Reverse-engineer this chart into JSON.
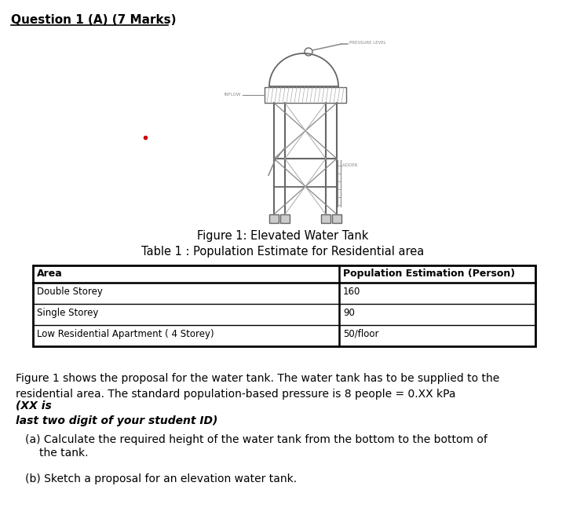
{
  "title": "Question 1 (A) (7 Marks)",
  "figure_caption": "Figure 1: Elevated Water Tank",
  "table_title": "Table 1 : Population Estimate for Residential area",
  "table_headers": [
    "Area",
    "Population Estimation (Person)"
  ],
  "table_rows": [
    [
      "Double Storey",
      "160"
    ],
    [
      "Single Storey",
      "90"
    ],
    [
      "Low Residential Apartment ( 4 Storey)",
      "50/floor"
    ]
  ],
  "para_normal": "Figure 1 shows the proposal for the water tank. The water tank has to be supplied to the\nresidential area. The standard population-based pressure is 8 people = 0.XX kPa ",
  "para_bold_italic": "(XX is\nlast two digit of your student ID)",
  "question_a_line1": "(a) Calculate the required height of the water tank from the bottom to the bottom of",
  "question_a_line2": "    the tank.",
  "question_b": "(b) Sketch a proposal for an elevation water tank.",
  "bg_color": "#ffffff",
  "text_color": "#000000",
  "red_dot_color": "#cc0000",
  "tank_color": "#666666",
  "tank_light": "#888888",
  "tank_lighter": "#aaaaaa"
}
